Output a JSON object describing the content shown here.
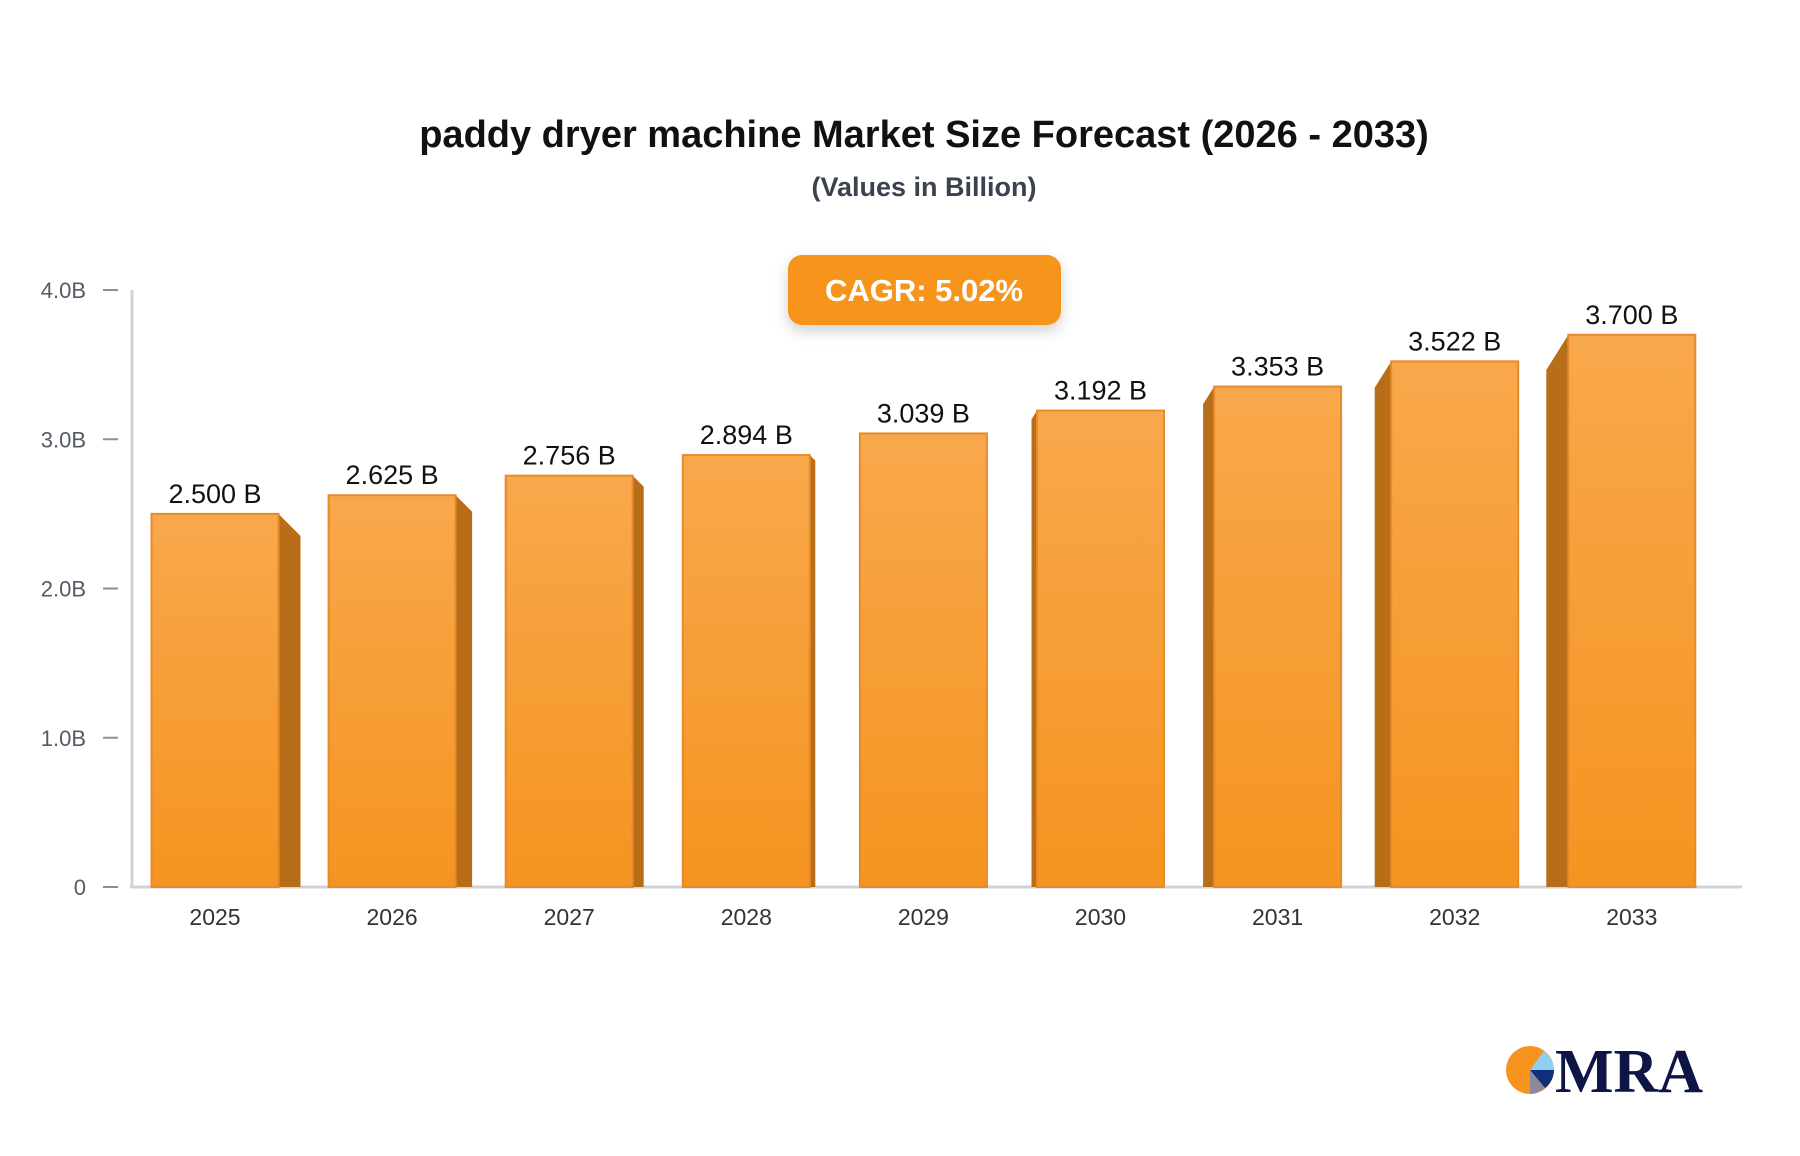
{
  "chart_data": {
    "type": "bar",
    "title": "paddy dryer machine Market Size Forecast (2026 - 2033)",
    "subtitle": "(Values in Billion)",
    "categories": [
      "2025",
      "2026",
      "2027",
      "2028",
      "2029",
      "2030",
      "2031",
      "2032",
      "2033"
    ],
    "values": [
      2.5,
      2.625,
      2.756,
      2.894,
      3.039,
      3.192,
      3.353,
      3.522,
      3.7
    ],
    "data_labels": [
      "2.500 B",
      "2.625 B",
      "2.756 B",
      "2.894 B",
      "3.039 B",
      "3.192 B",
      "3.353 B",
      "3.522 B",
      "3.700 B"
    ],
    "ylim": [
      0,
      4
    ],
    "yticks": [
      0,
      1,
      2,
      3,
      4
    ],
    "ytick_labels": [
      "0",
      "1.0B",
      "2.0B",
      "3.0B",
      "4.0B"
    ],
    "xlabel": "",
    "ylabel": "",
    "grid": false,
    "annotation": "CAGR: 5.02%",
    "colors": {
      "bar_front": "#f7a548",
      "bar_bottom": "#f59420",
      "bar_side": "#b86e18",
      "bar_edge": "#e8892a",
      "cagr_box": "#f7941d"
    }
  },
  "logo": {
    "text": "MRA"
  }
}
